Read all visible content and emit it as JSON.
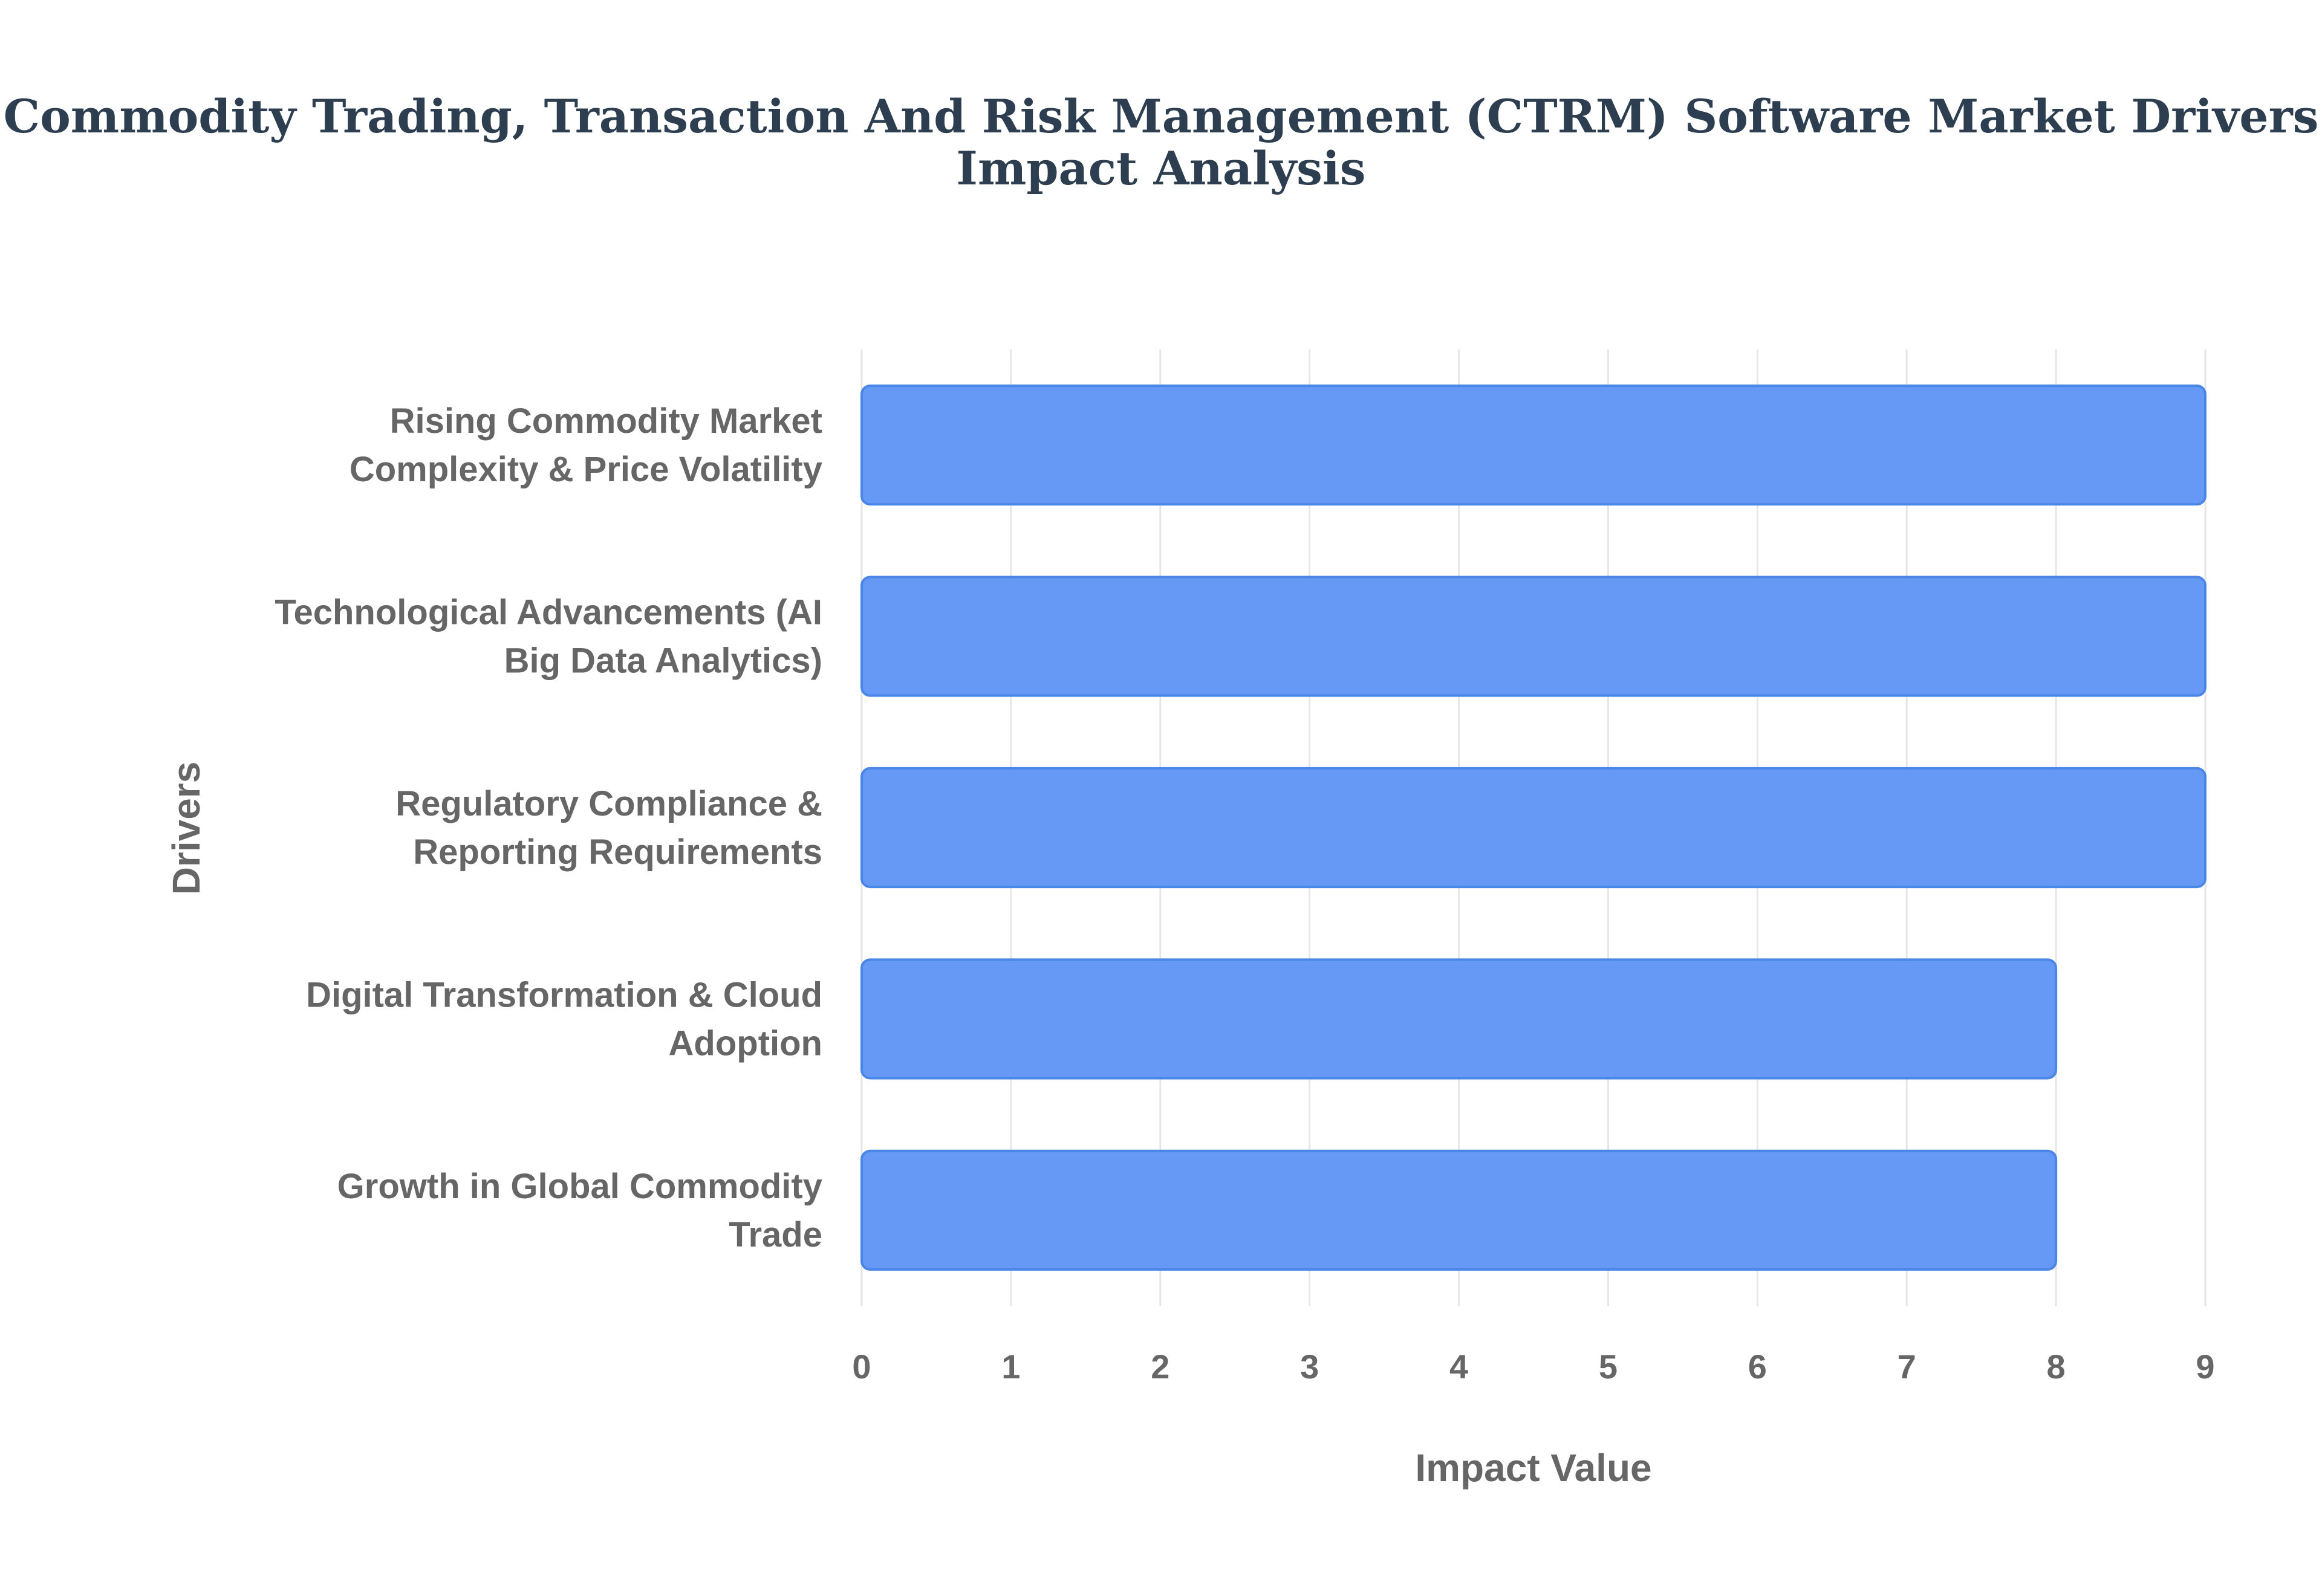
{
  "chart_data": {
    "type": "bar",
    "orientation": "horizontal",
    "title_lines": [
      "Commodity Trading, Transaction And Risk Management (CTRM) Software Market Drivers",
      "Impact Analysis"
    ],
    "xlabel": "Impact Value",
    "ylabel": "Drivers",
    "categories": [
      [
        "Rising Commodity Market",
        "Complexity & Price Volatility"
      ],
      [
        "Technological Advancements (AI",
        "Big Data Analytics)"
      ],
      [
        "Regulatory Compliance &",
        "Reporting Requirements"
      ],
      [
        "Digital Transformation & Cloud",
        "Adoption"
      ],
      [
        "Growth in Global Commodity",
        "Trade"
      ]
    ],
    "values": [
      9,
      9,
      9,
      8,
      8
    ],
    "xlim": [
      0,
      9
    ],
    "xticks": [
      "0",
      "1",
      "2",
      "3",
      "4",
      "5",
      "6",
      "7",
      "8",
      "9"
    ],
    "grid": true,
    "legend": "none",
    "colors": {
      "bar_fill": "#6699f5",
      "bar_stroke": "#4a86e8",
      "title": "#2c3e50",
      "text": "#666666"
    }
  }
}
